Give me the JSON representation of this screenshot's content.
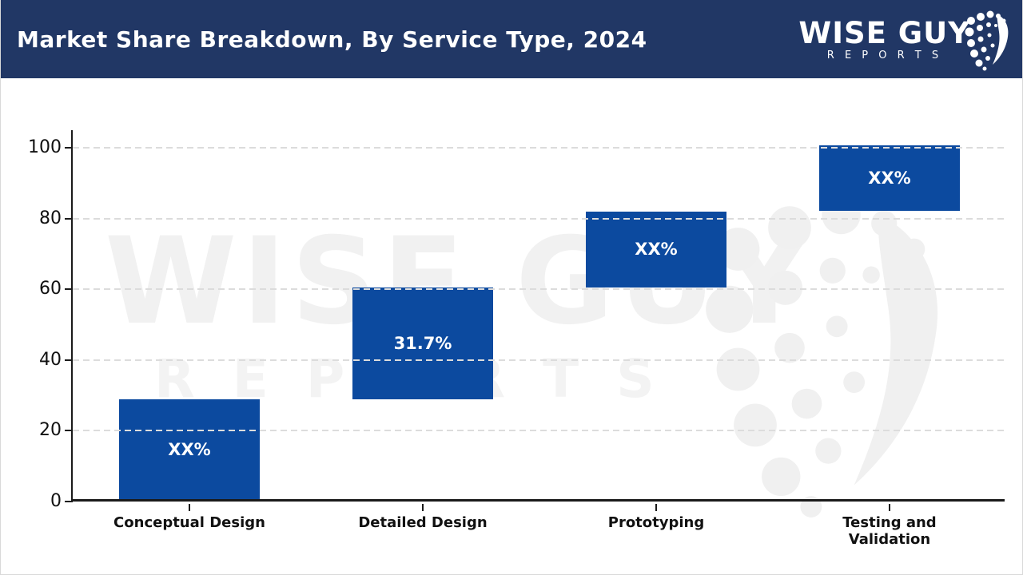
{
  "header": {
    "title": "Market Share Breakdown, By Service Type, 2024",
    "logo": {
      "line1": "WISE GUY",
      "line2": "R E P O R T S",
      "icon": "dotted-head-profile"
    }
  },
  "watermark": {
    "line1": "WISE GUY",
    "line2": "R E P O R T S",
    "icon": "dotted-head-profile"
  },
  "colors": {
    "header_bg": "#213765",
    "bar": "#0C4A9F",
    "bar_label": "#FFFFFF",
    "grid": "#DCDCDC",
    "axis": "#1A1A1A",
    "watermark": "#F1F1F1",
    "watermark2": "#F3F3F3",
    "page_border": "#D9D9D9"
  },
  "chart_data": {
    "type": "bar",
    "subtype": "waterfall",
    "title": "Market Share Breakdown, By Service Type, 2024",
    "categories": [
      "Conceptual Design",
      "Detailed Design",
      "Prototyping",
      "Testing and Validation"
    ],
    "segments": [
      {
        "category": "Conceptual Design",
        "start": 0,
        "end": 28.2,
        "label": "XX%"
      },
      {
        "category": "Detailed Design",
        "start": 28.2,
        "end": 59.9,
        "label": "31.7%"
      },
      {
        "category": "Prototyping",
        "start": 59.9,
        "end": 81.3,
        "label": "XX%"
      },
      {
        "category": "Testing and Validation",
        "start": 81.6,
        "end": 100,
        "label": "XX%"
      }
    ],
    "xlabel": "",
    "ylabel": "",
    "y_ticks": [
      0,
      20,
      40,
      60,
      80,
      100
    ],
    "ylim": [
      0,
      105
    ],
    "grid": "horizontal-dashed-over-bars",
    "legend": "none"
  }
}
